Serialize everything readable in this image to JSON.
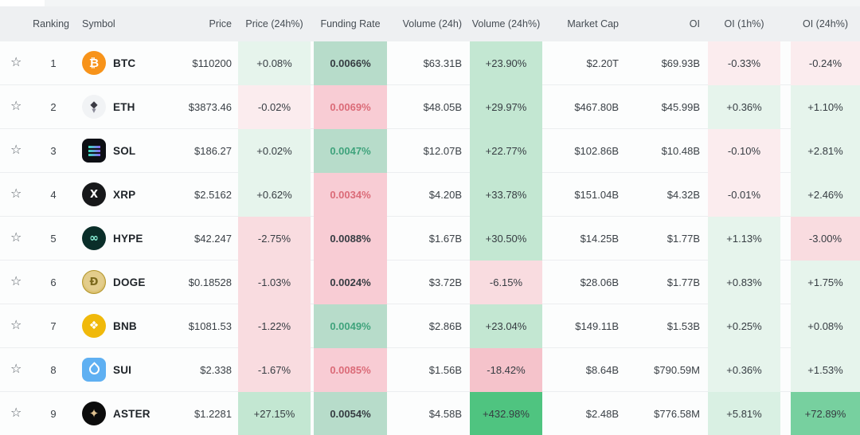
{
  "title": "Crypto futures market ranking table",
  "colors": {
    "tiers": {
      "g1": "#e6f4ec",
      "g1b": "#d9f0e3",
      "g2": "#c3e7d2",
      "g2b": "#77d09f",
      "g3": "#4fc480",
      "gf": "#b7dcca",
      "r1": "#fbecee",
      "r2": "#f9dce0",
      "r3": "#f5c3cb",
      "rf": "#f8ccd4"
    },
    "text": {
      "dark": "#363c42",
      "red": "#db6b78",
      "green": "#3fa37c"
    },
    "header_bg": "#eef0f2",
    "row_divider": "#eceef0"
  },
  "table": {
    "header": {
      "ranking": "Ranking",
      "symbol": "Symbol",
      "price": "Price",
      "price_24h": "Price (24h%)",
      "funding_rate": "Funding Rate",
      "volume_24h": "Volume (24h)",
      "volume_24h_pct": "Volume (24h%)",
      "market_cap": "Market Cap",
      "oi": "OI",
      "oi_1h": "OI (1h%)",
      "oi_24h": "OI (24h%)"
    },
    "favorite_icon": "star-outline",
    "rows": [
      {
        "ranking": "1",
        "symbol": "BTC",
        "icon": "btc",
        "price": "$110200",
        "price_24h": {
          "v": "+0.08%",
          "bg": "g1",
          "fg": "dark"
        },
        "funding_rate": {
          "v": "0.0066%",
          "bg": "gf",
          "fg": "dark"
        },
        "volume_24h": "$63.31B",
        "volume_24h_pct": {
          "v": "+23.90%",
          "bg": "g2",
          "fg": "dark"
        },
        "market_cap": "$2.20T",
        "oi": "$69.93B",
        "oi_1h": {
          "v": "-0.33%",
          "bg": "r1",
          "fg": "dark"
        },
        "oi_24h": {
          "v": "-0.24%",
          "bg": "r1",
          "fg": "dark"
        }
      },
      {
        "ranking": "2",
        "symbol": "ETH",
        "icon": "eth",
        "price": "$3873.46",
        "price_24h": {
          "v": "-0.02%",
          "bg": "r1",
          "fg": "dark"
        },
        "funding_rate": {
          "v": "0.0069%",
          "bg": "rf",
          "fg": "red"
        },
        "volume_24h": "$48.05B",
        "volume_24h_pct": {
          "v": "+29.97%",
          "bg": "g2",
          "fg": "dark"
        },
        "market_cap": "$467.80B",
        "oi": "$45.99B",
        "oi_1h": {
          "v": "+0.36%",
          "bg": "g1",
          "fg": "dark"
        },
        "oi_24h": {
          "v": "+1.10%",
          "bg": "g1",
          "fg": "dark"
        }
      },
      {
        "ranking": "3",
        "symbol": "SOL",
        "icon": "sol",
        "price": "$186.27",
        "price_24h": {
          "v": "+0.02%",
          "bg": "g1",
          "fg": "dark"
        },
        "funding_rate": {
          "v": "0.0047%",
          "bg": "gf",
          "fg": "green"
        },
        "volume_24h": "$12.07B",
        "volume_24h_pct": {
          "v": "+22.77%",
          "bg": "g2",
          "fg": "dark"
        },
        "market_cap": "$102.86B",
        "oi": "$10.48B",
        "oi_1h": {
          "v": "-0.10%",
          "bg": "r1",
          "fg": "dark"
        },
        "oi_24h": {
          "v": "+2.81%",
          "bg": "g1",
          "fg": "dark"
        }
      },
      {
        "ranking": "4",
        "symbol": "XRP",
        "icon": "xrp",
        "price": "$2.5162",
        "price_24h": {
          "v": "+0.62%",
          "bg": "g1",
          "fg": "dark"
        },
        "funding_rate": {
          "v": "0.0034%",
          "bg": "rf",
          "fg": "red"
        },
        "volume_24h": "$4.20B",
        "volume_24h_pct": {
          "v": "+33.78%",
          "bg": "g2",
          "fg": "dark"
        },
        "market_cap": "$151.04B",
        "oi": "$4.32B",
        "oi_1h": {
          "v": "-0.01%",
          "bg": "r1",
          "fg": "dark"
        },
        "oi_24h": {
          "v": "+2.46%",
          "bg": "g1",
          "fg": "dark"
        }
      },
      {
        "ranking": "5",
        "symbol": "HYPE",
        "icon": "hype",
        "price": "$42.247",
        "price_24h": {
          "v": "-2.75%",
          "bg": "r2",
          "fg": "dark"
        },
        "funding_rate": {
          "v": "0.0088%",
          "bg": "rf",
          "fg": "dark"
        },
        "volume_24h": "$1.67B",
        "volume_24h_pct": {
          "v": "+30.50%",
          "bg": "g2",
          "fg": "dark"
        },
        "market_cap": "$14.25B",
        "oi": "$1.77B",
        "oi_1h": {
          "v": "+1.13%",
          "bg": "g1",
          "fg": "dark"
        },
        "oi_24h": {
          "v": "-3.00%",
          "bg": "r2",
          "fg": "dark"
        }
      },
      {
        "ranking": "6",
        "symbol": "DOGE",
        "icon": "doge",
        "price": "$0.18528",
        "price_24h": {
          "v": "-1.03%",
          "bg": "r2",
          "fg": "dark"
        },
        "funding_rate": {
          "v": "0.0024%",
          "bg": "rf",
          "fg": "dark"
        },
        "volume_24h": "$3.72B",
        "volume_24h_pct": {
          "v": "-6.15%",
          "bg": "r2",
          "fg": "dark"
        },
        "market_cap": "$28.06B",
        "oi": "$1.77B",
        "oi_1h": {
          "v": "+0.83%",
          "bg": "g1",
          "fg": "dark"
        },
        "oi_24h": {
          "v": "+1.75%",
          "bg": "g1",
          "fg": "dark"
        }
      },
      {
        "ranking": "7",
        "symbol": "BNB",
        "icon": "bnb",
        "price": "$1081.53",
        "price_24h": {
          "v": "-1.22%",
          "bg": "r2",
          "fg": "dark"
        },
        "funding_rate": {
          "v": "0.0049%",
          "bg": "gf",
          "fg": "green"
        },
        "volume_24h": "$2.86B",
        "volume_24h_pct": {
          "v": "+23.04%",
          "bg": "g2",
          "fg": "dark"
        },
        "market_cap": "$149.11B",
        "oi": "$1.53B",
        "oi_1h": {
          "v": "+0.25%",
          "bg": "g1",
          "fg": "dark"
        },
        "oi_24h": {
          "v": "+0.08%",
          "bg": "g1",
          "fg": "dark"
        }
      },
      {
        "ranking": "8",
        "symbol": "SUI",
        "icon": "sui",
        "price": "$2.338",
        "price_24h": {
          "v": "-1.67%",
          "bg": "r2",
          "fg": "dark"
        },
        "funding_rate": {
          "v": "0.0085%",
          "bg": "rf",
          "fg": "red"
        },
        "volume_24h": "$1.56B",
        "volume_24h_pct": {
          "v": "-18.42%",
          "bg": "r3",
          "fg": "dark"
        },
        "market_cap": "$8.64B",
        "oi": "$790.59M",
        "oi_1h": {
          "v": "+0.36%",
          "bg": "g1",
          "fg": "dark"
        },
        "oi_24h": {
          "v": "+1.53%",
          "bg": "g1",
          "fg": "dark"
        }
      },
      {
        "ranking": "9",
        "symbol": "ASTER",
        "icon": "aster",
        "price": "$1.2281",
        "price_24h": {
          "v": "+27.15%",
          "bg": "g2",
          "fg": "dark"
        },
        "funding_rate": {
          "v": "0.0054%",
          "bg": "gf",
          "fg": "dark"
        },
        "volume_24h": "$4.58B",
        "volume_24h_pct": {
          "v": "+432.98%",
          "bg": "g3",
          "fg": "dark"
        },
        "market_cap": "$2.48B",
        "oi": "$776.58M",
        "oi_1h": {
          "v": "+5.81%",
          "bg": "g1b",
          "fg": "dark"
        },
        "oi_24h": {
          "v": "+72.89%",
          "bg": "g2b",
          "fg": "dark"
        }
      }
    ]
  }
}
